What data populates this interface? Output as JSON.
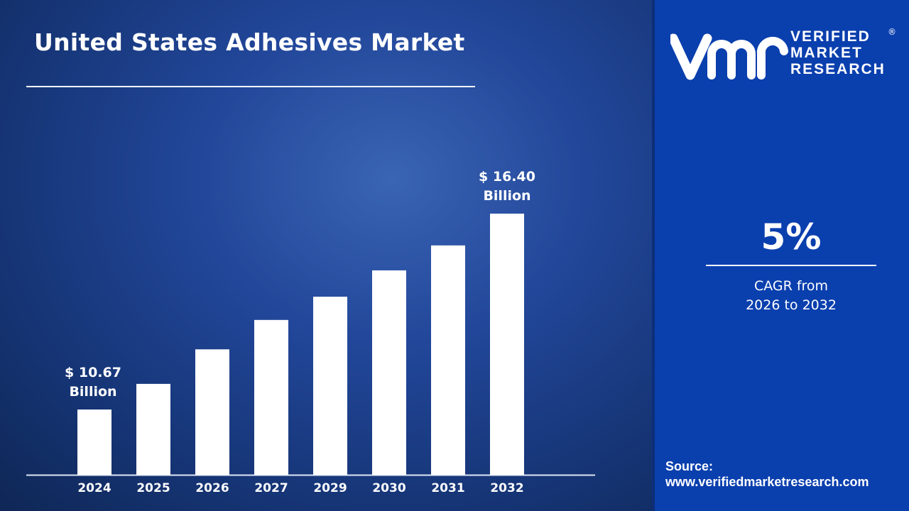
{
  "title": "United States Adhesives Market",
  "brand": {
    "line1": "VERIFIED",
    "line2": "MARKET",
    "line3": "RESEARCH",
    "registered": "®",
    "monogram": "vmr"
  },
  "cagr": {
    "value": "5%",
    "line1": "CAGR from",
    "line2": "2026 to 2032"
  },
  "source": {
    "label": "Source:",
    "url": "www.verifiedmarketresearch.com"
  },
  "colors": {
    "bar": "#ffffff",
    "panel": "#0a3fae",
    "background": "#1a3c84"
  },
  "chart_data": {
    "type": "bar",
    "title": "United States Adhesives Market",
    "categories": [
      "2024",
      "2025",
      "2026",
      "2027",
      "2029",
      "2030",
      "2031",
      "2032"
    ],
    "values": [
      10.67,
      11.42,
      12.43,
      13.29,
      13.97,
      14.74,
      15.47,
      16.4
    ],
    "unit": "USD Billion",
    "ylim": [
      8.76,
      16.4
    ],
    "grid": false,
    "annotations": [
      {
        "category": "2024",
        "line1": "$ 10.67",
        "line2": "Billion"
      },
      {
        "category": "2032",
        "line1": "$ 16.40",
        "line2": "Billion"
      }
    ]
  }
}
